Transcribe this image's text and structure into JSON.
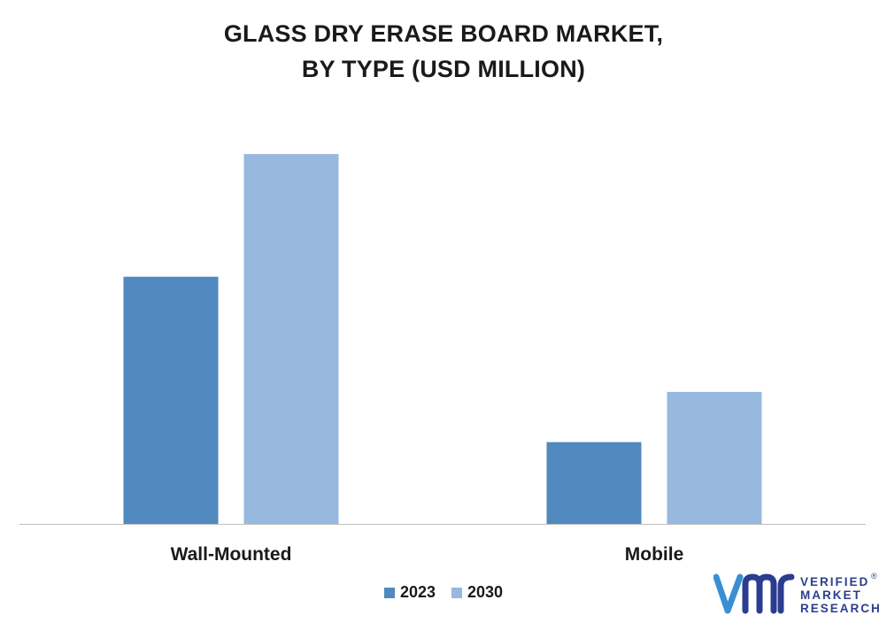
{
  "chart_data": {
    "type": "bar",
    "title_lines": [
      "GLASS DRY ERASE BOARD MARKET,",
      "BY TYPE (USD MILLION)"
    ],
    "categories": [
      "Wall-Mounted",
      "Mobile"
    ],
    "series": [
      {
        "name": "2023",
        "color": "#4f89bd",
        "values": [
          66.5,
          22
        ]
      },
      {
        "name": "2030",
        "color": "#97b8df",
        "values": [
          99.5,
          35.5
        ]
      }
    ],
    "ylim": [
      0,
      100
    ],
    "grid": false,
    "legend_position": "bottom-center"
  },
  "logo": {
    "lines": [
      "VERIFIED",
      "MARKET",
      "RESEARCH"
    ],
    "registered": "®",
    "icon": "vmr-logo-mark"
  }
}
